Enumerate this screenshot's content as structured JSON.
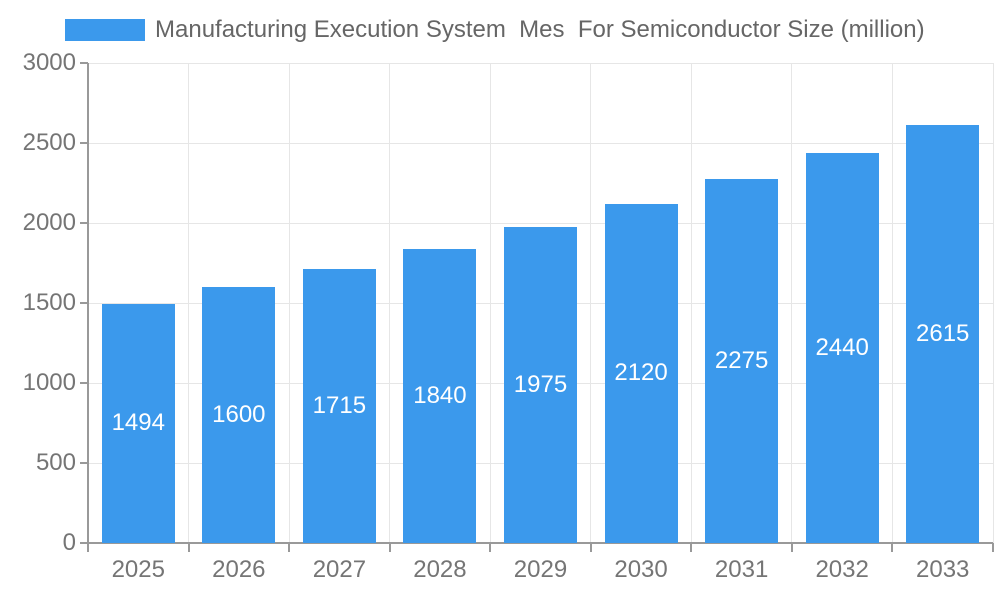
{
  "chart_data": {
    "type": "bar",
    "title": "Manufacturing Execution System  Mes  For Semiconductor Size (million)",
    "categories": [
      "2025",
      "2026",
      "2027",
      "2028",
      "2029",
      "2030",
      "2031",
      "2032",
      "2033"
    ],
    "values": [
      1494,
      1600,
      1715,
      1840,
      1975,
      2120,
      2275,
      2440,
      2615
    ],
    "xlabel": "",
    "ylabel": "",
    "ylim": [
      0,
      3000
    ],
    "yticks": [
      0,
      500,
      1000,
      1500,
      2000,
      2500,
      3000
    ],
    "grid": true,
    "legend_position": "top",
    "legend": [
      {
        "label": "Manufacturing Execution System  Mes  For Semiconductor Size (million)",
        "color": "#3b99ec"
      }
    ],
    "colors": {
      "bar": "#3b99ec",
      "grid": "#e6e6e6",
      "axis": "#999999",
      "tick_text": "#757575",
      "title_text": "#666666",
      "value_label": "#ffffff",
      "background": "#ffffff"
    }
  }
}
